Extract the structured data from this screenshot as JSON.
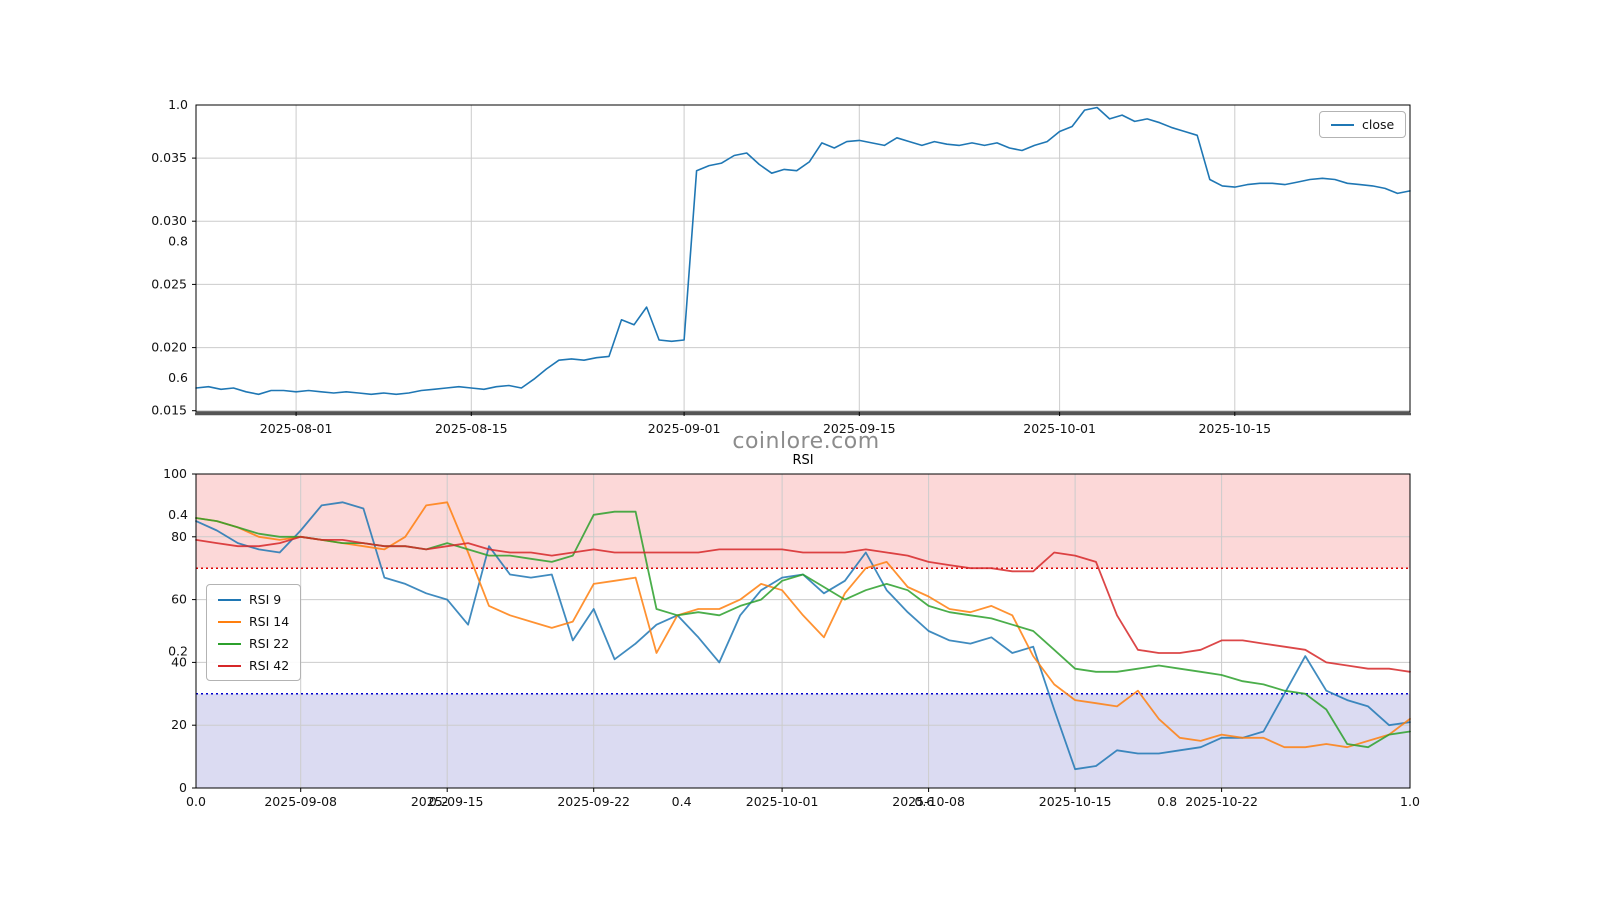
{
  "watermark": "coinlore.com",
  "overlay_axis": {
    "y_ticks": [
      {
        "f": 1.0,
        "label": "1.0"
      },
      {
        "f": 0.8,
        "label": "0.8"
      },
      {
        "f": 0.6,
        "label": "0.6"
      },
      {
        "f": 0.4,
        "label": "0.4"
      },
      {
        "f": 0.2,
        "label": "0.2"
      }
    ],
    "x_ticks": [
      {
        "f": 0.0,
        "label": "0.0"
      },
      {
        "f": 0.2,
        "label": "0.2"
      },
      {
        "f": 0.4,
        "label": "0.4"
      },
      {
        "f": 0.6,
        "label": "0.6"
      },
      {
        "f": 0.8,
        "label": "0.8"
      },
      {
        "f": 1.0,
        "label": "1.0"
      }
    ]
  },
  "chart_data": [
    {
      "type": "line",
      "name": "price",
      "title": "",
      "legend_position": "upper right",
      "grid": true,
      "ylim": [
        0.0149,
        0.0392
      ],
      "yticks": [
        {
          "v": 0.015,
          "label": "0.015"
        },
        {
          "v": 0.02,
          "label": "0.020"
        },
        {
          "v": 0.025,
          "label": "0.025"
        },
        {
          "v": 0.03,
          "label": "0.030"
        },
        {
          "v": 0.035,
          "label": "0.035"
        }
      ],
      "xticks": [
        {
          "i": 8,
          "label": "2025-08-01"
        },
        {
          "i": 22,
          "label": "2025-08-15"
        },
        {
          "i": 39,
          "label": "2025-09-01"
        },
        {
          "i": 53,
          "label": "2025-09-15"
        },
        {
          "i": 69,
          "label": "2025-10-01"
        },
        {
          "i": 83,
          "label": "2025-10-15"
        }
      ],
      "series": [
        {
          "name": "close",
          "color": "#1f77b4",
          "width": 1.6,
          "alpha": 1,
          "values": [
            0.0168,
            0.0169,
            0.0167,
            0.0168,
            0.0165,
            0.0163,
            0.0166,
            0.0166,
            0.0165,
            0.0166,
            0.0165,
            0.0164,
            0.0165,
            0.0164,
            0.0163,
            0.0164,
            0.0163,
            0.0164,
            0.0166,
            0.0167,
            0.0168,
            0.0169,
            0.0168,
            0.0167,
            0.0169,
            0.017,
            0.0168,
            0.0175,
            0.0183,
            0.019,
            0.0191,
            0.019,
            0.0192,
            0.0193,
            0.0222,
            0.0218,
            0.0232,
            0.0206,
            0.0205,
            0.0206,
            0.034,
            0.0344,
            0.0346,
            0.0352,
            0.0354,
            0.0345,
            0.0338,
            0.0341,
            0.034,
            0.0347,
            0.0362,
            0.0358,
            0.0363,
            0.0364,
            0.0362,
            0.036,
            0.0366,
            0.0363,
            0.036,
            0.0363,
            0.0361,
            0.036,
            0.0362,
            0.036,
            0.0362,
            0.0358,
            0.0356,
            0.036,
            0.0363,
            0.0371,
            0.0375,
            0.0388,
            0.039,
            0.0381,
            0.0384,
            0.0379,
            0.0381,
            0.0378,
            0.0374,
            0.0371,
            0.0368,
            0.0333,
            0.0328,
            0.0327,
            0.0329,
            0.033,
            0.033,
            0.0329,
            0.0331,
            0.0333,
            0.0334,
            0.0333,
            0.033,
            0.0329,
            0.0328,
            0.0326,
            0.0322,
            0.0324
          ]
        }
      ]
    },
    {
      "type": "line",
      "name": "rsi",
      "title": "RSI",
      "legend_position": "center left",
      "grid": true,
      "ylim": [
        0,
        100
      ],
      "yticks": [
        {
          "v": 0,
          "label": "0"
        },
        {
          "v": 20,
          "label": "20"
        },
        {
          "v": 40,
          "label": "40"
        },
        {
          "v": 60,
          "label": "60"
        },
        {
          "v": 80,
          "label": "80"
        },
        {
          "v": 100,
          "label": "100"
        }
      ],
      "xticks": [
        {
          "i": 5,
          "label": "2025-09-08"
        },
        {
          "i": 12,
          "label": "2025-09-15"
        },
        {
          "i": 19,
          "label": "2025-09-22"
        },
        {
          "i": 28,
          "label": "2025-10-01"
        },
        {
          "i": 35,
          "label": "2025-10-08"
        },
        {
          "i": 42,
          "label": "2025-10-15"
        },
        {
          "i": 49,
          "label": "2025-10-22"
        }
      ],
      "bands": [
        {
          "from": 70,
          "to": 100,
          "color": "#fcd8d8"
        },
        {
          "from": 0,
          "to": 30,
          "color": "#dbdbf2"
        }
      ],
      "hlines": [
        {
          "v": 70,
          "color": "#dd0000"
        },
        {
          "v": 30,
          "color": "#0000cc"
        }
      ],
      "series": [
        {
          "name": "RSI 9",
          "color": "#1f77b4",
          "width": 1.8,
          "alpha": 0.85,
          "values": [
            85,
            82,
            78,
            76,
            75,
            82,
            90,
            91,
            89,
            67,
            65,
            62,
            60,
            52,
            77,
            68,
            67,
            68,
            47,
            57,
            41,
            46,
            52,
            55,
            48,
            40,
            55,
            63,
            67,
            68,
            62,
            66,
            75,
            63,
            56,
            50,
            47,
            46,
            48,
            43,
            45,
            25,
            6,
            7,
            12,
            11,
            11,
            12,
            13,
            16,
            16,
            18,
            30,
            42,
            31,
            28,
            26,
            20,
            21
          ]
        },
        {
          "name": "RSI 14",
          "color": "#ff7f0e",
          "width": 1.8,
          "alpha": 0.85,
          "values": [
            86,
            85,
            83,
            80,
            79,
            80,
            79,
            78,
            77,
            76,
            80,
            90,
            91,
            75,
            58,
            55,
            53,
            51,
            53,
            65,
            66,
            67,
            43,
            55,
            57,
            57,
            60,
            65,
            63,
            55,
            48,
            62,
            70,
            72,
            64,
            61,
            57,
            56,
            58,
            55,
            42,
            33,
            28,
            27,
            26,
            31,
            22,
            16,
            15,
            17,
            16,
            16,
            13,
            13,
            14,
            13,
            15,
            17,
            22
          ]
        },
        {
          "name": "RSI 22",
          "color": "#2ca02c",
          "width": 1.8,
          "alpha": 0.85,
          "values": [
            86,
            85,
            83,
            81,
            80,
            80,
            79,
            78,
            78,
            77,
            77,
            76,
            78,
            76,
            74,
            74,
            73,
            72,
            74,
            87,
            88,
            88,
            57,
            55,
            56,
            55,
            58,
            60,
            66,
            68,
            64,
            60,
            63,
            65,
            63,
            58,
            56,
            55,
            54,
            52,
            50,
            44,
            38,
            37,
            37,
            38,
            39,
            38,
            37,
            36,
            34,
            33,
            31,
            30,
            25,
            14,
            13,
            17,
            18
          ]
        },
        {
          "name": "RSI 42",
          "color": "#d62728",
          "width": 1.8,
          "alpha": 0.85,
          "values": [
            79,
            78,
            77,
            77,
            78,
            80,
            79,
            79,
            78,
            77,
            77,
            76,
            77,
            78,
            76,
            75,
            75,
            74,
            75,
            76,
            75,
            75,
            75,
            75,
            75,
            76,
            76,
            76,
            76,
            75,
            75,
            75,
            76,
            75,
            74,
            72,
            71,
            70,
            70,
            69,
            69,
            75,
            74,
            72,
            55,
            44,
            43,
            43,
            44,
            47,
            47,
            46,
            45,
            44,
            40,
            39,
            38,
            38,
            37
          ]
        }
      ]
    }
  ]
}
